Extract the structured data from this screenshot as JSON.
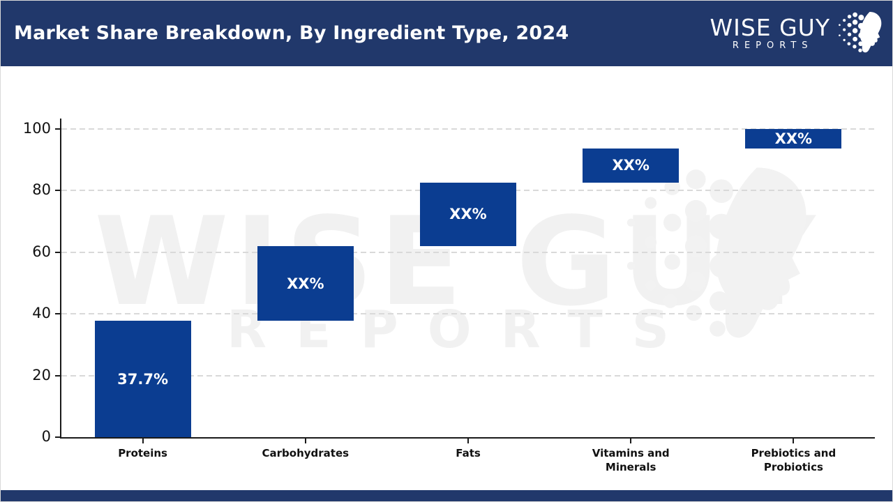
{
  "header": {
    "title": "Market Share Breakdown, By Ingredient Type, 2024",
    "logo_line1": "WISE GUY",
    "logo_line2": "REPORTS"
  },
  "watermark": {
    "line1": "WISE GUY",
    "line2": "REPORTS"
  },
  "colors": {
    "header_bg": "#21386B",
    "footer_bg": "#21386B",
    "bar_fill": "#0B3D91",
    "bar_label_text": "#FFFFFF",
    "axis": "#1A1A1A",
    "tick_label": "#111111",
    "grid": "#D9D9D9",
    "watermark": "#F1F1F1"
  },
  "chart_data": {
    "type": "bar",
    "subtype": "waterfall",
    "title": "Market Share Breakdown, By Ingredient Type, 2024",
    "categories": [
      "Proteins",
      "Carbohydrates",
      "Fats",
      "Vitamins and Minerals",
      "Prebiotics and Probiotics"
    ],
    "category_lines": [
      [
        "Proteins"
      ],
      [
        "Carbohydrates"
      ],
      [
        "Fats"
      ],
      [
        "Vitamins and",
        "Minerals"
      ],
      [
        "Prebiotics and",
        "Probiotics"
      ]
    ],
    "segments": [
      {
        "category": "Proteins",
        "start": 0,
        "end": 37.7,
        "label": "37.7%"
      },
      {
        "category": "Carbohydrates",
        "start": 37.7,
        "end": 62.0,
        "label": "XX%"
      },
      {
        "category": "Fats",
        "start": 62.0,
        "end": 82.6,
        "label": "XX%"
      },
      {
        "category": "Vitamins and Minerals",
        "start": 82.6,
        "end": 93.7,
        "label": "XX%"
      },
      {
        "category": "Prebiotics and Probiotics",
        "start": 93.7,
        "end": 100,
        "label": "XX%"
      }
    ],
    "ylim": [
      0,
      100
    ],
    "yticks": [
      0,
      20,
      40,
      60,
      80,
      100
    ],
    "xlabel": "",
    "ylabel": "",
    "grid": "horizontal-dashed",
    "legend": "none"
  }
}
